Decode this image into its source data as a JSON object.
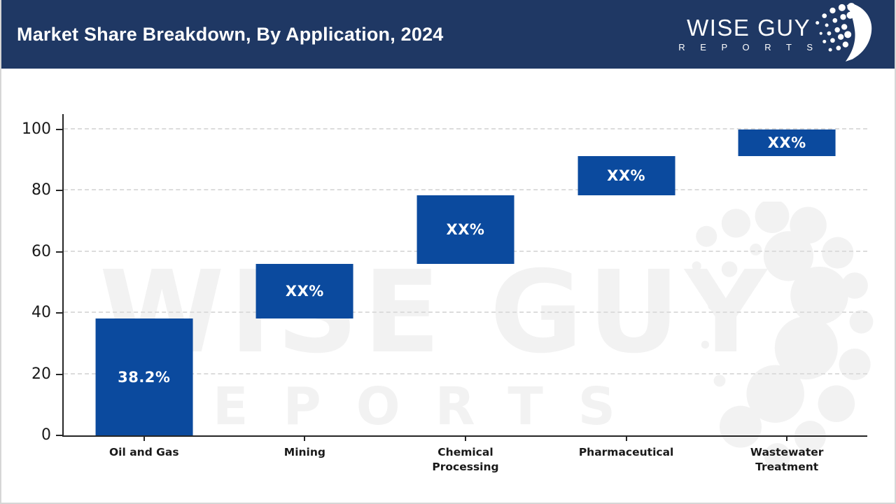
{
  "header": {
    "title": "Market Share Breakdown, By Application, 2024",
    "logo": {
      "line1": "WISE GUY",
      "line2": "R E P O R T S"
    }
  },
  "watermark": {
    "line1": "WISE GUY",
    "line2": "REPORTS"
  },
  "colors": {
    "header_bg": "#1f3864",
    "bar": "#0b4a9e",
    "bar_label": "#ffffff",
    "gridline": "#dcdcdc",
    "axis": "#262626",
    "text": "#1a1a1a",
    "watermark": "#f2f2f2"
  },
  "chart_data": {
    "type": "bar",
    "subtype": "waterfall",
    "title": "Market Share Breakdown, By Application, 2024",
    "categories": [
      "Oil and Gas",
      "Mining",
      "Chemical\nProcessing",
      "Pharmaceutical",
      "Wastewater\nTreatment"
    ],
    "segments": [
      {
        "label": "Oil and Gas",
        "start": 0,
        "end": 38.2,
        "display": "38.2%"
      },
      {
        "label": "Mining",
        "start": 38.2,
        "end": 56,
        "display": "XX%"
      },
      {
        "label": "Chemical Processing",
        "start": 56,
        "end": 78.5,
        "display": "XX%"
      },
      {
        "label": "Pharmaceutical",
        "start": 78.5,
        "end": 91.3,
        "display": "XX%"
      },
      {
        "label": "Wastewater Treatment",
        "start": 91.3,
        "end": 100,
        "display": "XX%"
      }
    ],
    "xlabel": "",
    "ylabel": "",
    "yticks": [
      0,
      20,
      40,
      60,
      80,
      100
    ],
    "ylim": [
      0,
      105
    ],
    "grid": "horizontal-dashed",
    "legend": "none",
    "bar_color": "#0b4a9e"
  }
}
